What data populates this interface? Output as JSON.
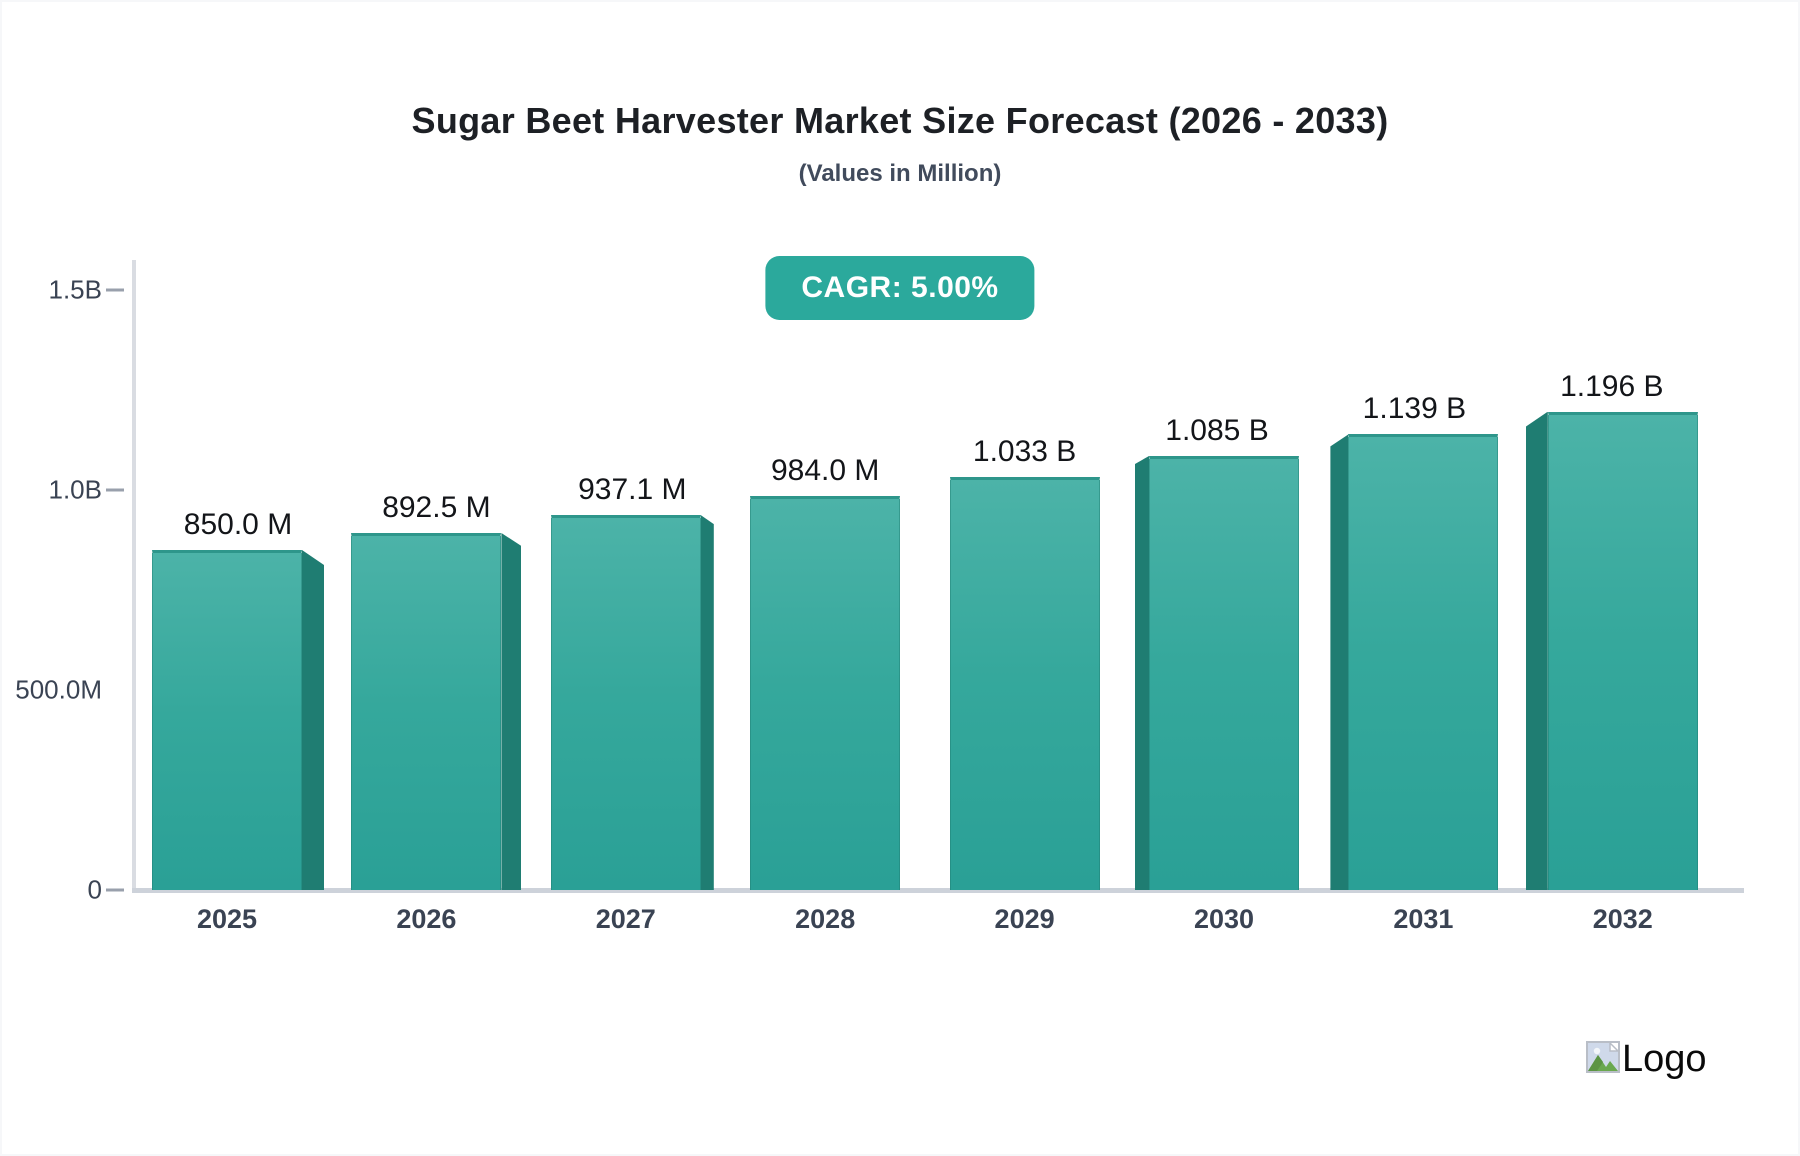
{
  "header": {
    "title": "Sugar Beet Harvester Market Size Forecast (2026 - 2033)",
    "subtitle": "(Values in Million)"
  },
  "badge": {
    "label": "CAGR: 5.00%",
    "background": "#2BA99C",
    "text_color": "#FFFFFF"
  },
  "chart_data": {
    "type": "bar",
    "title": "Sugar Beet Harvester Market Size Forecast (2026 - 2033)",
    "subtitle": "(Values in Million)",
    "cagr_label": "CAGR: 5.00%",
    "categories": [
      "2025",
      "2026",
      "2027",
      "2028",
      "2029",
      "2030",
      "2031",
      "2032"
    ],
    "values_millions": [
      850.0,
      892.5,
      937.1,
      984.0,
      1033,
      1085,
      1139,
      1196
    ],
    "value_labels": [
      "850.0 M",
      "892.5 M",
      "937.1 M",
      "984.0 M",
      "1.033 B",
      "1.085 B",
      "1.139 B",
      "1.196 B"
    ],
    "ylim_millions": [
      0,
      1500
    ],
    "yticks": [
      {
        "label": "0",
        "value_millions": 0
      },
      {
        "label": "500.0M",
        "value_millions": 500
      },
      {
        "label": "1.0B",
        "value_millions": 1000
      },
      {
        "label": "1.5B",
        "value_millions": 1500
      }
    ],
    "grid": false,
    "legend": false,
    "bar_face_top_color": "#4CB3A8",
    "bar_face_bottom_color": "#2AA096",
    "bar_side_color": "#1F7D72",
    "axis_line_color": "#CDD2DA"
  },
  "footer": {
    "logo_text": "Logo"
  }
}
